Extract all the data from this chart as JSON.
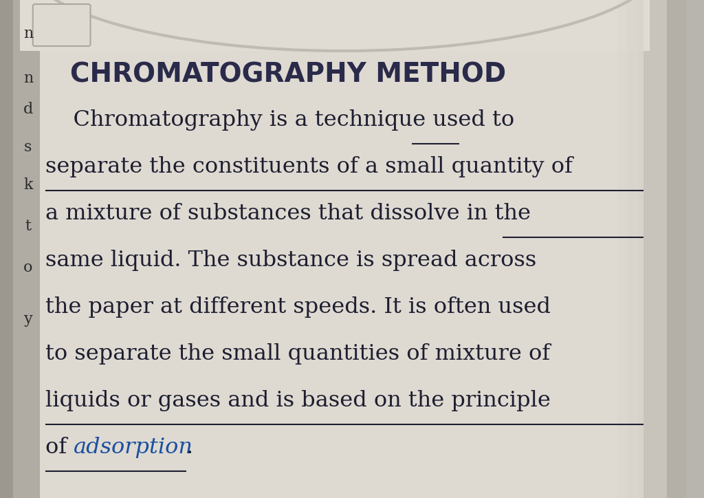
{
  "title": "CHROMATOGRAPHY METHOD",
  "title_fontsize": 28,
  "title_color": "#2a2a4a",
  "body_fontsize": 23,
  "line1": "    Chromatography is a technique used to",
  "line2": "separate the constituents of a small quantity of",
  "line3": "a mixture of substances that dissolve in the",
  "line4": "same liquid. The substance is spread across",
  "line5": "the paper at different speeds. It is often used",
  "line6": "to separate the small quantities of mixture of",
  "line7": "liquids or gases and is based on the principle",
  "line8_prefix": "of ",
  "line8_word": "adsorption",
  "line8_suffix": ".",
  "text_color": "#1e1e30",
  "adsorption_color": "#1a4fa0",
  "background_color": "#b8b4ae",
  "page_color": "#d8d4cc",
  "right_fade_color": "#c0bcb4",
  "left_margin_color": "#a8a49c",
  "margin_letters": [
    "n",
    "n",
    "d",
    "s",
    "k",
    "t",
    "o",
    "y"
  ],
  "margin_letter_color": "#2a2a2a",
  "figsize": [
    10.24,
    7.24
  ],
  "dpi": 100
}
